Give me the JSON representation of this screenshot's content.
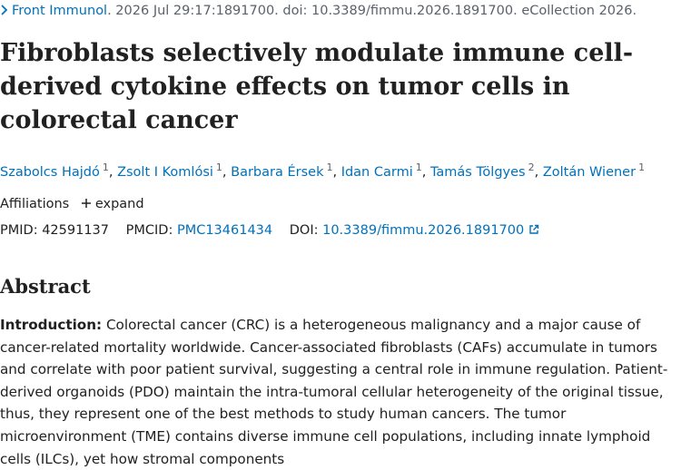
{
  "citation": {
    "journal": "Front Immunol",
    "details": ". 2026 Jul 29:17:1891700. doi: 10.3389/fimmu.2026.1891700. eCollection 2026."
  },
  "title": "Fibroblasts selectively modulate immune cell-derived cytokine effects on tumor cells in colorectal cancer",
  "authors": [
    {
      "name": "Szabolcs Hajdó",
      "affiliation": "1"
    },
    {
      "name": "Zsolt I Komlósi",
      "affiliation": "1"
    },
    {
      "name": "Barbara Érsek",
      "affiliation": "1"
    },
    {
      "name": "Idan Carmi",
      "affiliation": "1"
    },
    {
      "name": "Tamás Tölgyes",
      "affiliation": "2"
    },
    {
      "name": "Zoltán Wiener",
      "affiliation": "1"
    }
  ],
  "affiliations": {
    "label": "Affiliations",
    "toggle": "expand"
  },
  "identifiers": {
    "pmid_label": "PMID:",
    "pmid": "42591137",
    "pmcid_label": "PMCID:",
    "pmcid": "PMC13461434",
    "doi_label": "DOI:",
    "doi": "10.3389/fimmu.2026.1891700"
  },
  "abstract": {
    "heading": "Abstract",
    "label": "Introduction:",
    "text": "Colorectal cancer (CRC) is a heterogeneous malignancy and a major cause of cancer-related mortality worldwide. Cancer-associated fibroblasts (CAFs) accumulate in tumors and correlate with poor patient survival, suggesting a central role in immune regulation. Patient-derived organoids (PDO) maintain the intra-tumoral cellular heterogeneity of the original tissue, thus, they represent one of the best methods to study human cancers. The tumor microenvironment (TME) contains diverse immune cell populations, including innate lymphoid cells (ILCs), yet how stromal components"
  }
}
